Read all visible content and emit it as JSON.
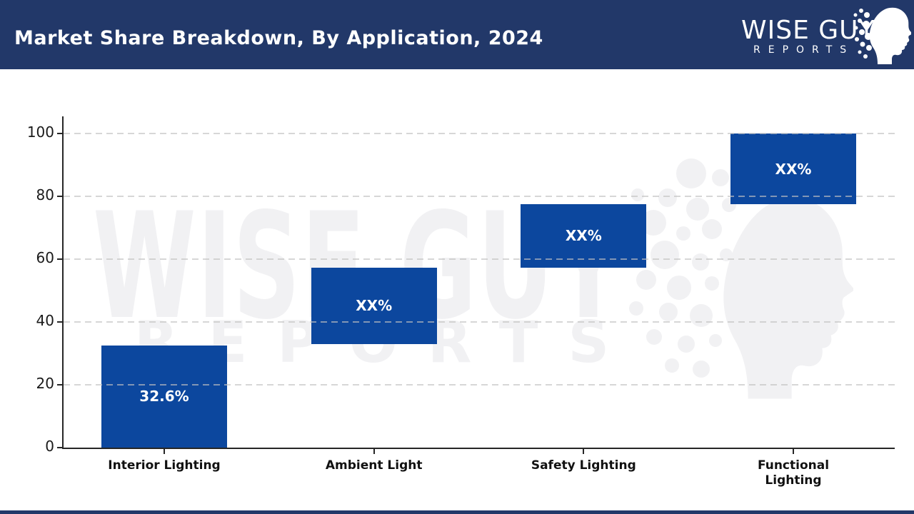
{
  "header": {
    "title": "Market Share Breakdown, By Application, 2024",
    "logo": {
      "line1": "WISE GUY",
      "line2": "REPORTS"
    }
  },
  "watermark": {
    "line1": "WISE GUY",
    "line2": "REPORTS"
  },
  "colors": {
    "header_bg": "#223869",
    "bar": "#0c479e",
    "bar_label": "#ffffff",
    "watermark": "#f1f1f3",
    "gridline": "#d8d8d8",
    "axis": "#262626"
  },
  "chart_data": {
    "type": "bar",
    "subtype": "waterfall",
    "title": "Market Share Breakdown, By Application, 2024",
    "categories": [
      "Interior Lighting",
      "Ambient Light",
      "Safety Lighting",
      "Functional\nLighting"
    ],
    "segments": [
      {
        "category": "Interior Lighting",
        "start": 0,
        "end": 32.6,
        "label": "32.6%"
      },
      {
        "category": "Ambient Light",
        "start": 33.0,
        "end": 57.3,
        "label": "XX%"
      },
      {
        "category": "Safety Lighting",
        "start": 57.3,
        "end": 77.6,
        "label": "XX%"
      },
      {
        "category": "Functional Lighting",
        "start": 77.5,
        "end": 100,
        "label": "XX%"
      }
    ],
    "xlabel": "",
    "ylabel": "",
    "ylim": [
      0,
      100
    ],
    "yticks": [
      0,
      20,
      40,
      60,
      80,
      100
    ],
    "grid": "horizontal-dashed",
    "legend": "none"
  }
}
